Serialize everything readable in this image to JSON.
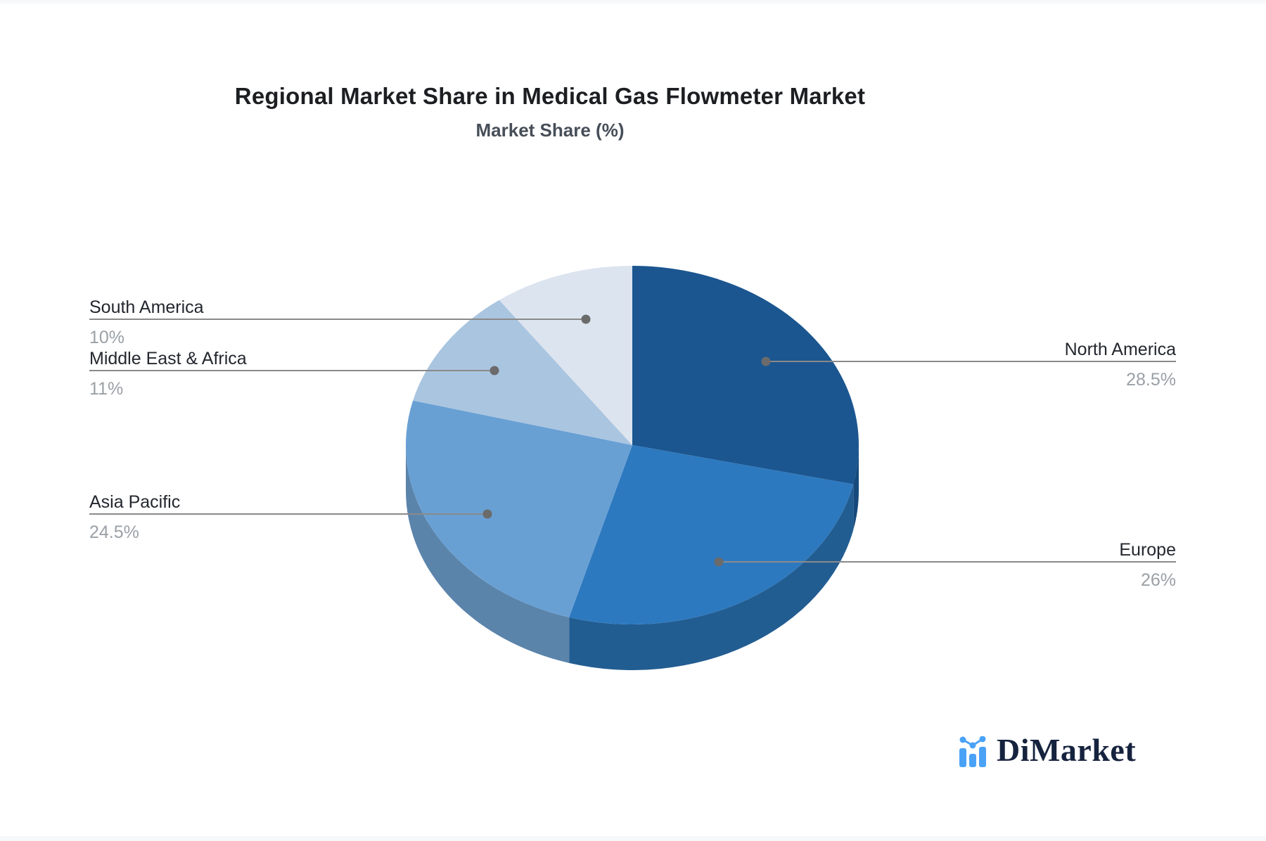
{
  "header": {
    "title": "Regional Market Share in Medical Gas Flowmeter Market",
    "subtitle": "Market Share (%)"
  },
  "chart_data": {
    "type": "pie",
    "style": "3d-pie-with-callout-labels",
    "title": "Regional Market Share in Medical Gas Flowmeter Market",
    "subtitle": "Market Share (%)",
    "unit": "%",
    "labels": [
      "North America",
      "Europe",
      "Asia Pacific",
      "Middle East & Africa",
      "South America"
    ],
    "values": [
      28.5,
      26,
      24.5,
      11,
      10
    ],
    "value_labels": [
      "28.5%",
      "26%",
      "24.5%",
      "11%",
      "10%"
    ],
    "colors": [
      "#1b5690",
      "#2d79bf",
      "#69a0d4",
      "#aac5e0",
      "#dce4ef"
    ],
    "side_colors": [
      "#174a7c",
      "#225d92",
      "#5b84ab",
      "#93b3d2",
      "#c3d0e0"
    ],
    "start_angle": "12-oclock",
    "direction": "clockwise",
    "legend_position": "callout-labels-left-right",
    "label_text_color": "#23272e",
    "value_text_color": "#9aa0a6",
    "leader_line_color": "#8a8a8a",
    "leader_dot_color": "#6b6b6b",
    "background_color": "#ffffff"
  },
  "branding": {
    "logo_text": "DiMarket",
    "logo_icon": "bar-chart-with-trend-line-icon",
    "logo_icon_color": "#4aa2f7",
    "logo_text_color": "#16233e"
  }
}
